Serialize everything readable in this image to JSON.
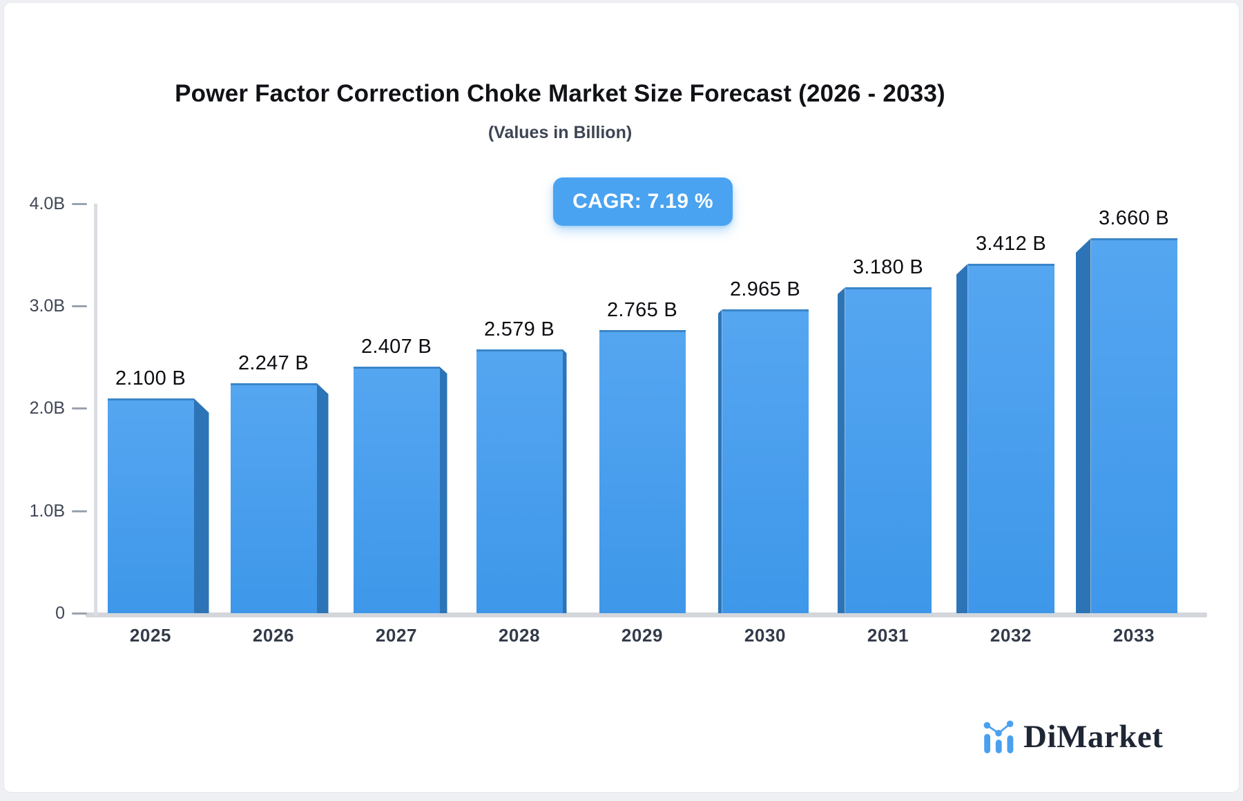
{
  "title": "Power Factor Correction Choke Market Size Forecast (2026 - 2033)",
  "subtitle": "(Values in Billion)",
  "cagr_badge": "CAGR: 7.19 %",
  "brand": {
    "name": "DiMarket",
    "icon": "bar-line-chart-icon"
  },
  "colors": {
    "bar_face_top": "#55a6f1",
    "bar_face_bottom": "#3e97e9",
    "bar_top_edge": "#3a85c8",
    "bar_side": "#2d74b7",
    "badge_bg": "#4aa3f0",
    "badge_text": "#ffffff",
    "axis_text": "#3f4654",
    "logo_blue": "#4aa0ee",
    "logo_text": "#1f2736"
  },
  "chart_data": {
    "type": "bar",
    "categories": [
      "2025",
      "2026",
      "2027",
      "2028",
      "2029",
      "2030",
      "2031",
      "2032",
      "2033"
    ],
    "values": [
      2.1,
      2.247,
      2.407,
      2.579,
      2.765,
      2.965,
      3.18,
      3.412,
      3.66
    ],
    "value_labels": [
      "2.100 B",
      "2.247 B",
      "2.407 B",
      "2.579 B",
      "2.765 B",
      "2.965 B",
      "3.180 B",
      "3.412 B",
      "3.660 B"
    ],
    "title": "Power Factor Correction Choke Market Size Forecast (2026 - 2033)",
    "subtitle": "(Values in Billion)",
    "annotation": "CAGR: 7.19 %",
    "xlabel": "",
    "ylabel": "",
    "ylim": [
      0,
      4
    ],
    "y_ticks": [
      {
        "value": 4.0,
        "label": "4.0B"
      },
      {
        "value": 3.0,
        "label": "3.0B"
      },
      {
        "value": 2.0,
        "label": "2.0B"
      },
      {
        "value": 1.0,
        "label": "1.0B"
      },
      {
        "value": 0.0,
        "label": "0"
      }
    ],
    "grid": false,
    "legend": "none",
    "bar_style": "3d-pseudo-perspective"
  }
}
